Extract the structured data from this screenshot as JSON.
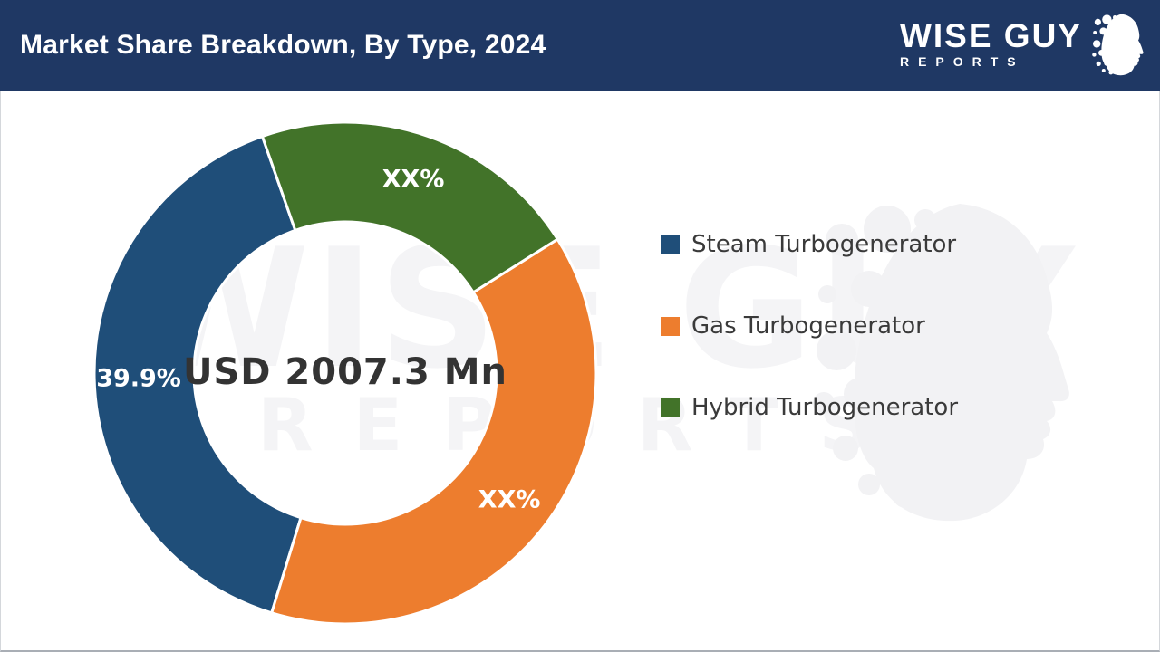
{
  "header": {
    "title": "Market Share Breakdown, By Type, 2024",
    "logo": {
      "line1": "WISE GUY",
      "line2": "REPORTS"
    }
  },
  "watermark": {
    "line1": "WISE GUY",
    "line2": "REPORTS"
  },
  "chart_data": {
    "type": "pie",
    "subtype": "donut",
    "title": "Market Share Breakdown, By Type, 2024",
    "center_label": "USD 2007.3 Mn",
    "start_angle_deg": 109.3,
    "direction": "counterclockwise",
    "inner_radius_ratio": 0.603,
    "legend_position": "right",
    "segments": [
      {
        "label": "Steam Turbogenerator",
        "value_pct": 39.9,
        "display": "39.9%",
        "color": "#1f4e79"
      },
      {
        "label": "Gas Turbogenerator",
        "value_pct": 38.7,
        "display": "XX%",
        "color": "#ed7d2e"
      },
      {
        "label": "Hybrid Turbogenerator",
        "value_pct": 21.4,
        "display": "XX%",
        "color": "#427329"
      }
    ]
  }
}
